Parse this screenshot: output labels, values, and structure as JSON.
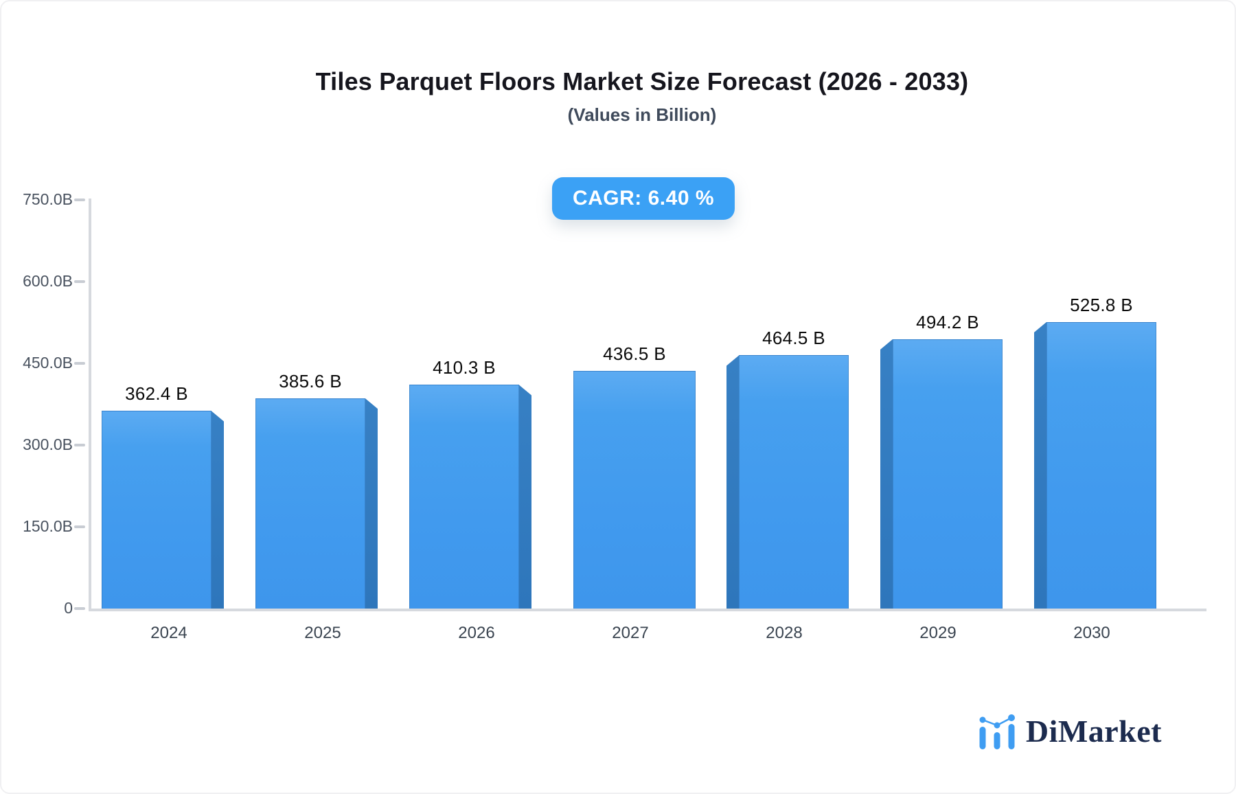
{
  "header": {
    "title": "Tiles Parquet Floors Market Size Forecast (2026 - 2033)",
    "subtitle": "(Values in Billion)",
    "cagr_badge": "CAGR: 6.40 %"
  },
  "chart_data": {
    "type": "bar",
    "title": "Tiles Parquet Floors Market Size Forecast (2026 - 2033)",
    "subtitle": "(Values in Billion)",
    "categories": [
      "2024",
      "2025",
      "2026",
      "2027",
      "2028",
      "2029",
      "2030"
    ],
    "values": [
      362.4,
      385.6,
      410.3,
      436.5,
      464.5,
      494.2,
      525.8
    ],
    "bar_labels": [
      "362.4 B",
      "385.6 B",
      "410.3 B",
      "436.5 B",
      "464.5 B",
      "494.2 B",
      "525.8 B"
    ],
    "xlabel": "",
    "ylabel": "",
    "ylim": [
      0,
      750
    ],
    "y_ticks": [
      {
        "value": 0,
        "label": "0"
      },
      {
        "value": 150,
        "label": "150.0B"
      },
      {
        "value": 300,
        "label": "300.0B"
      },
      {
        "value": 450,
        "label": "450.0B"
      },
      {
        "value": 600,
        "label": "600.0B"
      },
      {
        "value": 750,
        "label": "750.0B"
      }
    ],
    "grid": false,
    "legend": "none",
    "colors": {
      "bar_face_top": "#5cabf2",
      "bar_face_bottom": "#3e96ec",
      "bar_side": "#2e76bb",
      "axis_line": "#d6d9de",
      "badge_bg": "#3ba1f5",
      "badge_text": "#ffffff",
      "value_label": "#0b0b0b"
    }
  },
  "footer": {
    "brand": "DiMarket"
  }
}
